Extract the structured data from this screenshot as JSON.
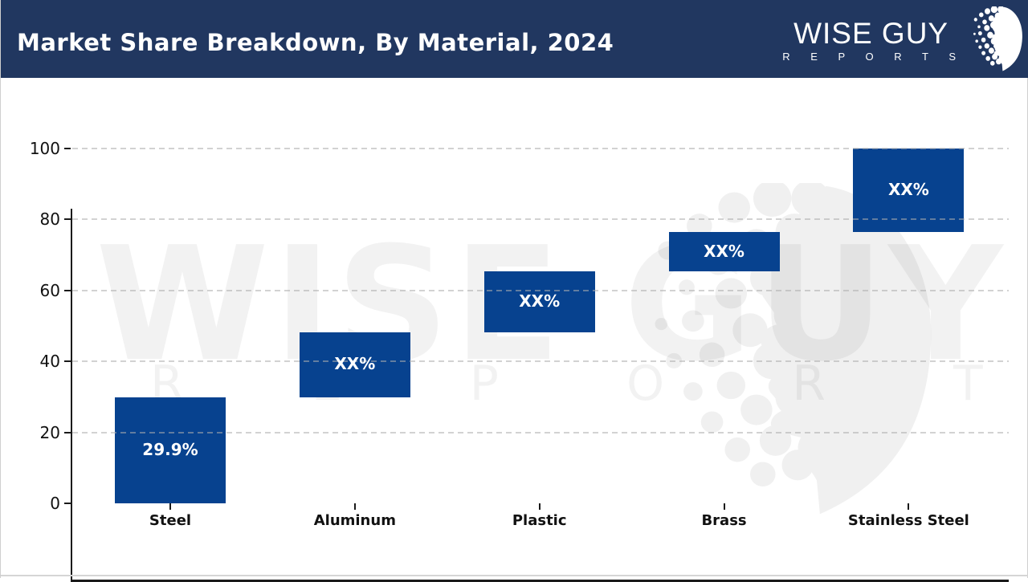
{
  "header": {
    "title": "Market Share Breakdown, By Material, 2024",
    "bg_color": "#213760",
    "logo": {
      "line1": "WISE GUY",
      "line2": "R E P O R T S"
    }
  },
  "watermark": {
    "line1": "WISE GUY",
    "line2": "R E P O R T S"
  },
  "chart_data": {
    "type": "bar",
    "subtype": "waterfall-floating-bars",
    "title": "Market Share Breakdown, By Material, 2024",
    "categories": [
      "Steel",
      "Aluminum",
      "Plastic",
      "Brass",
      "Stainless Steel"
    ],
    "segments": [
      [
        0,
        29.9
      ],
      [
        29.9,
        48.1
      ],
      [
        48.1,
        65.2
      ],
      [
        65.2,
        76.4
      ],
      [
        76.4,
        100
      ]
    ],
    "bar_labels": [
      "29.9%",
      "XX%",
      "XX%",
      "XX%",
      "XX%"
    ],
    "y_ticks": [
      0,
      20,
      40,
      60,
      80,
      100
    ],
    "ylim": [
      0,
      105
    ],
    "xlabel": "",
    "ylabel": "",
    "bar_color": "#07428f",
    "grid": "dashed-horizontal-over-bars",
    "legend": "none"
  }
}
